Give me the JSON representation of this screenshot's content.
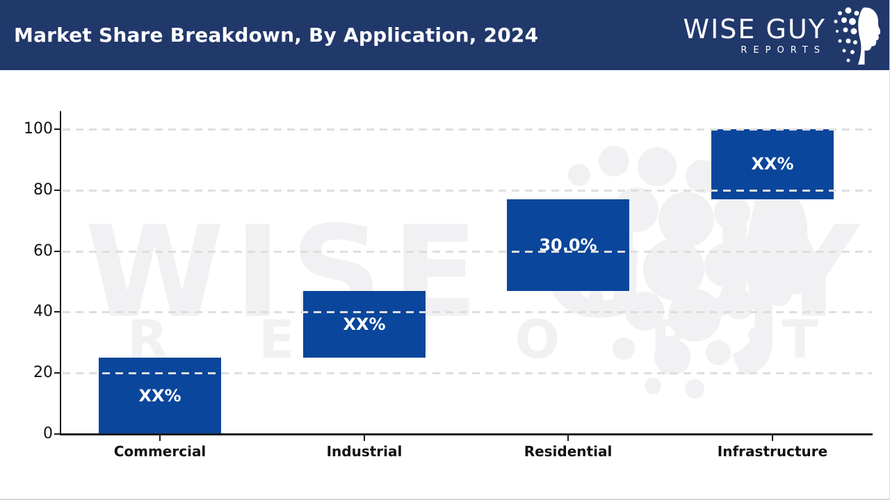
{
  "header": {
    "title": "Market Share Breakdown, By Application, 2024",
    "bg_color": "#21386b",
    "logo": {
      "line1": "WISE GUY",
      "line2": "REPORTS"
    }
  },
  "watermark": {
    "line1": "WISE GUY",
    "line2": "REPORTS"
  },
  "chart_data": {
    "type": "bar",
    "subtype": "waterfall",
    "title": "Market Share Breakdown, By Application, 2024",
    "categories": [
      "Commercial",
      "Industrial",
      "Residential",
      "Infrastructure"
    ],
    "bars": [
      {
        "category": "Commercial",
        "start": 0,
        "end": 25,
        "value": 25,
        "label": "XX%"
      },
      {
        "category": "Industrial",
        "start": 25,
        "end": 47,
        "value": 22,
        "label": "XX%"
      },
      {
        "category": "Residential",
        "start": 47,
        "end": 77,
        "value": 30,
        "label": "30.0%"
      },
      {
        "category": "Infrastructure",
        "start": 77,
        "end": 100,
        "value": 23,
        "label": "XX%"
      }
    ],
    "ylim": [
      0,
      100
    ],
    "yticks": [
      0,
      20,
      40,
      60,
      80,
      100
    ],
    "xlabel": "",
    "ylabel": "",
    "bar_color": "#0a469b",
    "grid": "dashed-horizontal",
    "gridline_color": "#dedede",
    "legend": "none"
  }
}
